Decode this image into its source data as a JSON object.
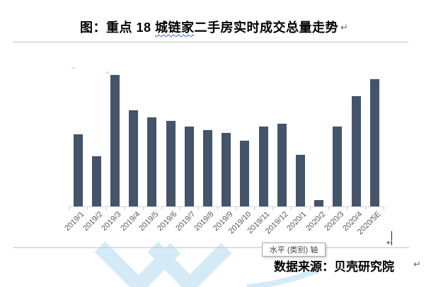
{
  "header": {
    "title_prefix": "图：重点 18 ",
    "title_flagged": "城链家",
    "title_suffix": "二手房实时成交总量走势",
    "paragraph_mark": "↵"
  },
  "chart_data": {
    "type": "bar",
    "title": "图：重点 18 城链家二手房实时成交总量走势",
    "categories": [
      "2019/1",
      "2019/2",
      "2019/3",
      "2019/4",
      "2019/5",
      "2019/6",
      "2019/7",
      "2019/8",
      "2019/9",
      "2019/10",
      "2019/11",
      "2019/12",
      "2020/1",
      "2020/2",
      "2020/3",
      "2020/4",
      "2020/5E"
    ],
    "values": [
      55,
      38,
      100,
      73,
      68,
      65,
      61,
      58,
      56,
      50,
      61,
      63,
      39,
      5,
      61,
      84,
      97
    ],
    "xlabel": "",
    "ylabel": "",
    "ylim": [
      0,
      100
    ],
    "value_axis_visible": false,
    "gridlines": false,
    "legend": "none",
    "bar_color": "#44546a",
    "axis_tick_color": "#c9c9c9",
    "x_label_rotation_deg": 45
  },
  "tooltip": {
    "text": "水平 (类别) 轴"
  },
  "footer": {
    "source_note": "数据来源：贝壳研究院",
    "paragraph_mark": "↵",
    "cursor_mark": "↵"
  },
  "colors": {
    "bar": "#44546a",
    "divider": "#c3c3c3",
    "watermark_blue": "#c7e4f5",
    "axis_label": "#595959"
  }
}
